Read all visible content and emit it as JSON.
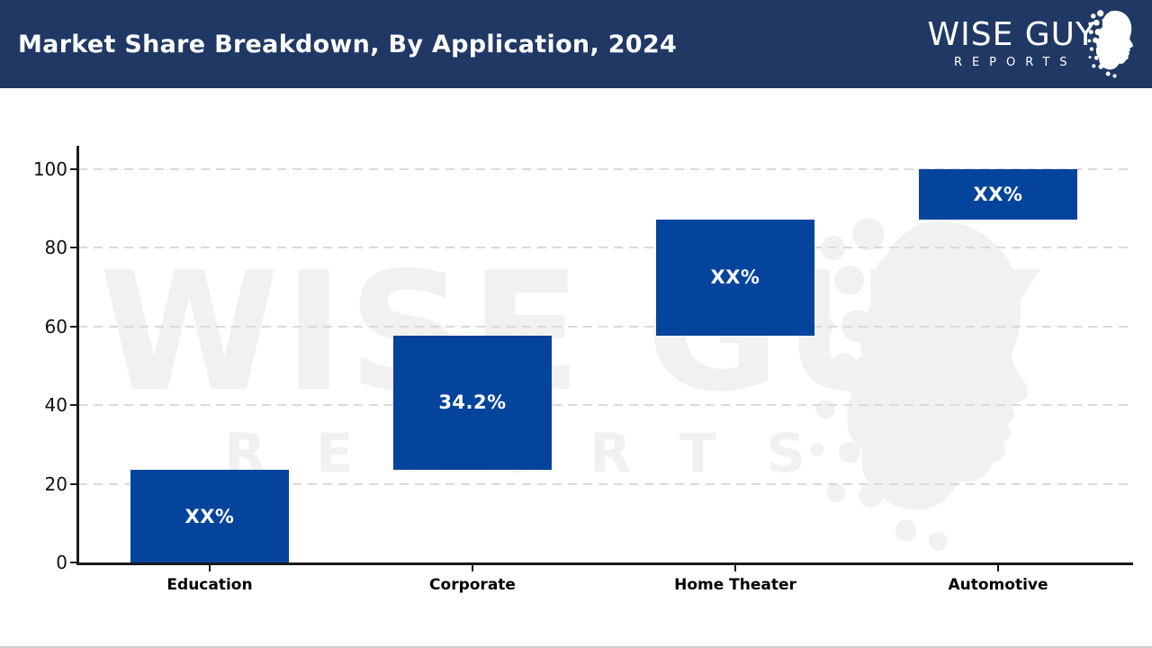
{
  "header": {
    "title": "Market Share Breakdown, By Application, 2024",
    "logo": {
      "line1": "WISE GUY",
      "line2": "REPORTS"
    },
    "bg_color": "#1f3864"
  },
  "watermark": {
    "line1": "WISE GUY",
    "line2": "REPORTS"
  },
  "chart_data": {
    "type": "bar",
    "subtype": "waterfall",
    "title": "Market Share Breakdown, By Application, 2024",
    "categories": [
      "Education",
      "Corporate",
      "Home Theater",
      "Automotive"
    ],
    "values": [
      23.5,
      34.2,
      29.5,
      12.8
    ],
    "cumulative_start": [
      0,
      23.5,
      57.7,
      87.2
    ],
    "cumulative_end": [
      23.5,
      57.7,
      87.2,
      100
    ],
    "bar_labels": [
      "XX%",
      "34.2%",
      "XX%",
      "XX%"
    ],
    "xlabel": "",
    "ylabel": "",
    "yticks": [
      0,
      20,
      40,
      60,
      80,
      100
    ],
    "ylim": [
      0,
      105.8
    ],
    "legend": "none",
    "grid": {
      "axis": "y",
      "style": "dashed",
      "color": "#d9d9d9"
    },
    "bar_color": "#05449c",
    "bar_label_color": "#ffffff",
    "axis_color": "#1a1a1a",
    "tick_label_color": "#111111"
  }
}
